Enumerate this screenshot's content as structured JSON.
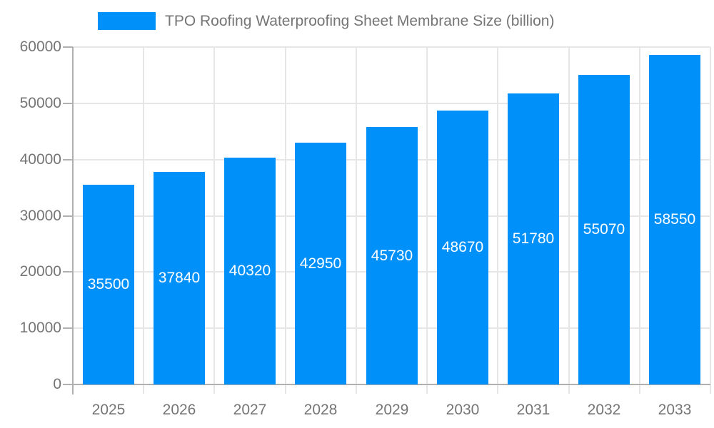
{
  "legend": {
    "label": "TPO Roofing Waterproofing Sheet Membrane Size (billion)"
  },
  "chart_data": {
    "type": "bar",
    "title": "",
    "xlabel": "",
    "ylabel": "",
    "categories": [
      "2025",
      "2026",
      "2027",
      "2028",
      "2029",
      "2030",
      "2031",
      "2032",
      "2033"
    ],
    "series": [
      {
        "name": "TPO Roofing Waterproofing Sheet Membrane Size (billion)",
        "values": [
          35500,
          37840,
          40320,
          42950,
          45730,
          48670,
          51780,
          55070,
          58550
        ]
      }
    ],
    "value_labels": [
      "35500",
      "37840",
      "40320",
      "42950",
      "45730",
      "48670",
      "51780",
      "55070",
      "58550"
    ],
    "ylim": [
      0,
      60000
    ],
    "yticks": [
      0,
      10000,
      20000,
      30000,
      40000,
      50000,
      60000
    ],
    "ytick_labels": [
      "0",
      "10000",
      "20000",
      "30000",
      "40000",
      "50000",
      "60000"
    ],
    "grid": true,
    "legend_position": "top",
    "colors": {
      "bar": "#0090FA",
      "value_label": "#FFFFFF",
      "axis_text": "#757575",
      "gridline": "#E6E6E6",
      "axis_line": "#B0B0B0"
    }
  }
}
